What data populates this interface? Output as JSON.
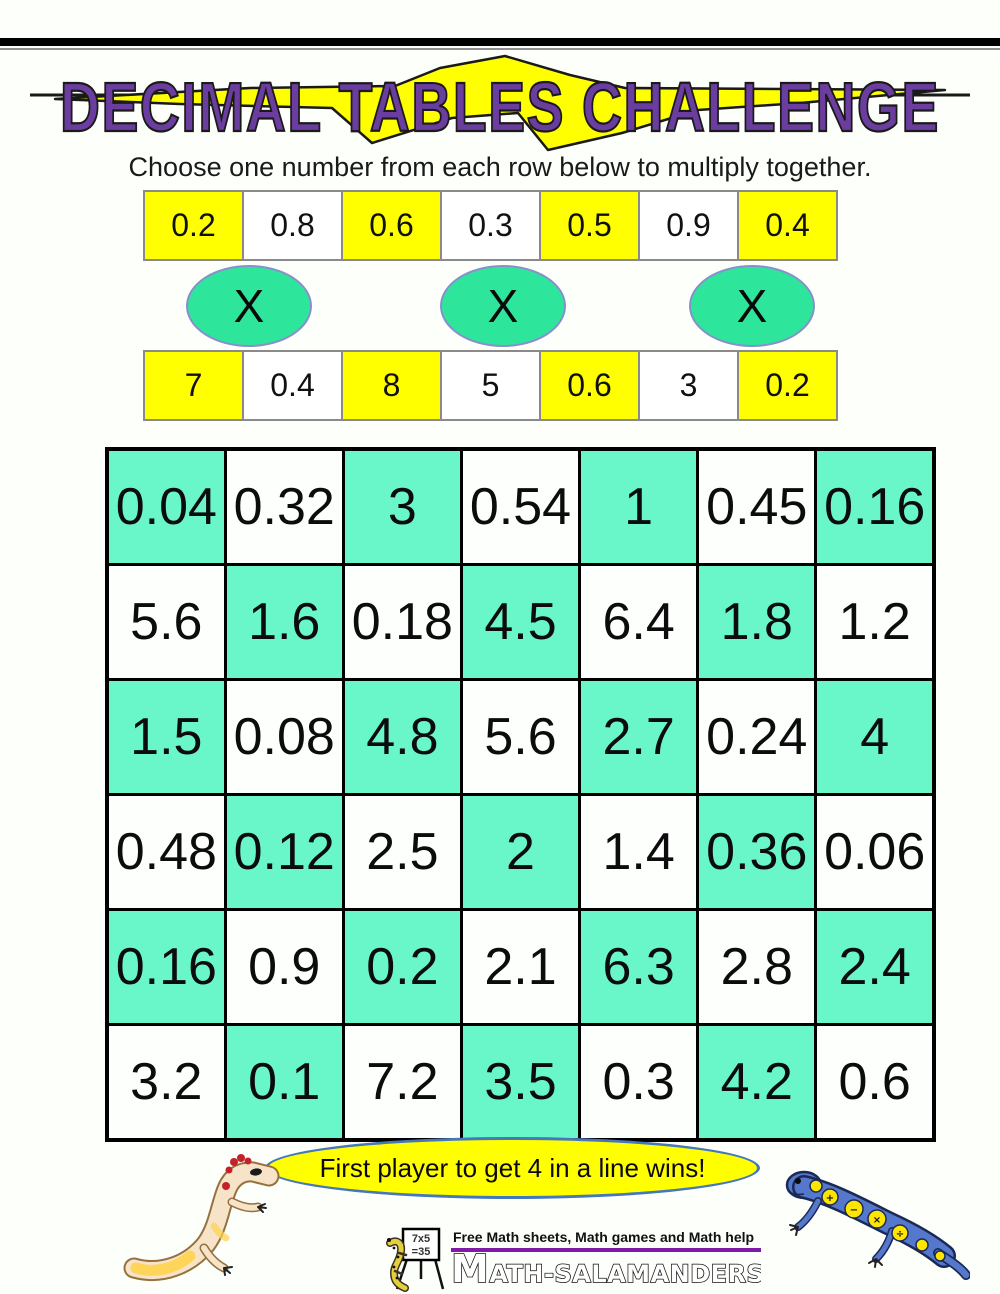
{
  "title": {
    "text": "DECIMAL TABLES CHALLENGE"
  },
  "instruction": "Choose one number from each row below to multiply together.",
  "factors": {
    "top_row": [
      "0.2",
      "0.8",
      "0.6",
      "0.3",
      "0.5",
      "0.9",
      "0.4"
    ],
    "operators": [
      "X",
      "X",
      "X"
    ],
    "bottom_row": [
      "7",
      "0.4",
      "8",
      "5",
      "0.6",
      "3",
      "0.2"
    ]
  },
  "product_grid": {
    "rows": [
      [
        "0.04",
        "0.32",
        "3",
        "0.54",
        "1",
        "0.45",
        "0.16"
      ],
      [
        "5.6",
        "1.6",
        "0.18",
        "4.5",
        "6.4",
        "1.8",
        "1.2"
      ],
      [
        "1.5",
        "0.08",
        "4.8",
        "5.6",
        "2.7",
        "0.24",
        "4"
      ],
      [
        "0.48",
        "0.12",
        "2.5",
        "2",
        "1.4",
        "0.36",
        "0.06"
      ],
      [
        "0.16",
        "0.9",
        "0.2",
        "2.1",
        "6.3",
        "2.8",
        "2.4"
      ],
      [
        "3.2",
        "0.1",
        "7.2",
        "3.5",
        "0.3",
        "4.2",
        "0.6"
      ]
    ]
  },
  "footer": {
    "win_message": "First player to get 4 in a line wins!"
  },
  "logo": {
    "board_text_line1": "7x5",
    "board_text_line2": "=35",
    "tagline": "Free Math sheets, Math games and Math help",
    "site_initial": "M",
    "site_rest": "ATH-SALAMANDERS.COM"
  },
  "colors": {
    "cell_yellow": "#FFFF00",
    "cell_teal": "#69F7C9",
    "oval_green": "#2EE59C",
    "oval_border": "#8890CC",
    "title_purple": "#6B3D9E",
    "banner_yellow": "#FFFF00",
    "grid_border": "#000000",
    "win_oval_border": "#4477BB",
    "logo_underline_purple": "#8018A8"
  }
}
